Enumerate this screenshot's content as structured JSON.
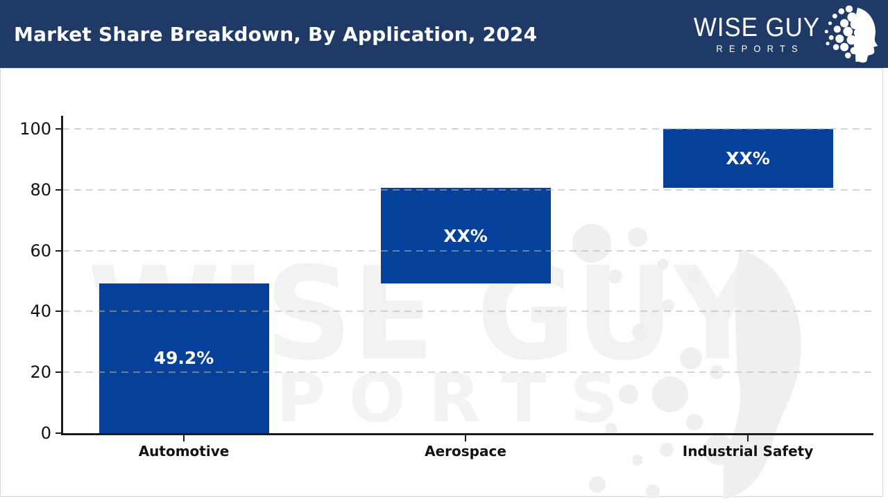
{
  "header": {
    "title": "Market Share Breakdown, By Application, 2024",
    "logo": {
      "line1": "WISE GUY",
      "line2": "REPORTS"
    }
  },
  "watermark": {
    "line1": "WISE GUY",
    "line2": "REPORTS"
  },
  "chart_data": {
    "type": "bar",
    "subtype": "waterfall",
    "title": "Market Share Breakdown, By Application, 2024",
    "xlabel": "",
    "ylabel": "",
    "categories": [
      "Automotive",
      "Aerospace",
      "Industrial Safety"
    ],
    "segments": [
      {
        "category": "Automotive",
        "start": 0,
        "end": 49.2,
        "label": "49.2%"
      },
      {
        "category": "Aerospace",
        "start": 49.2,
        "end": 80.6,
        "label": "XX%"
      },
      {
        "category": "Industrial Safety",
        "start": 80.6,
        "end": 100,
        "label": "XX%"
      }
    ],
    "yticks": [
      0,
      20,
      40,
      60,
      80,
      100
    ],
    "ylim": [
      0,
      105
    ],
    "grid": "horizontal dashed",
    "legend": "none",
    "colors": {
      "bar": "#05419b",
      "bar_label": "#ffffff",
      "header_bg": "#1f3a66",
      "gridline": "#d8d8d8",
      "axis": "#1c1c1c",
      "watermark": "#f2f2f2"
    }
  }
}
